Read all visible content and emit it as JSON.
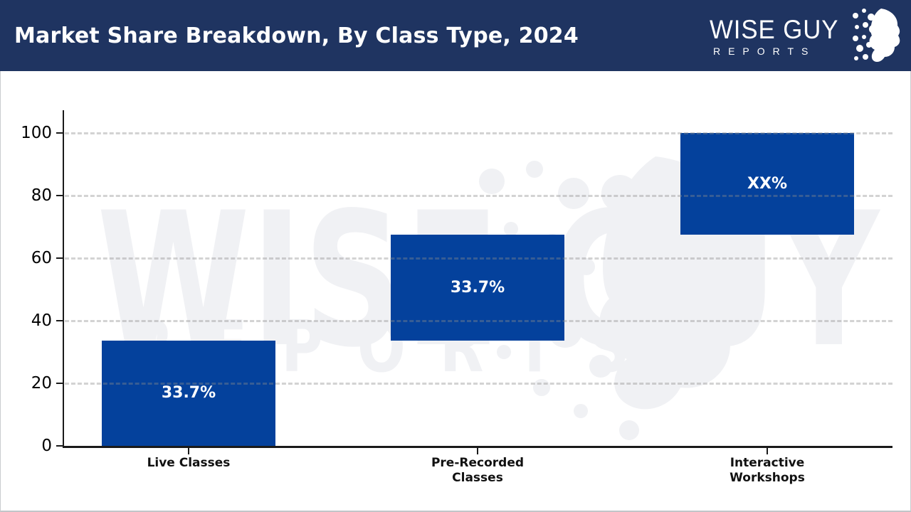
{
  "header": {
    "title": "Market Share Breakdown, By Class Type, 2024",
    "background_color": "#1F3461",
    "logo": {
      "line1": "WISE GUY",
      "line2": "REPORTS"
    }
  },
  "watermark": {
    "line1": "WISE GUY",
    "line2": "REPORTS"
  },
  "chart_data": {
    "type": "bar",
    "subtype": "floating-segment-waterfall",
    "title": "Market Share Breakdown, By Class Type, 2024",
    "categories": [
      "Live Classes",
      "Pre-Recorded Classes",
      "Interactive Workshops"
    ],
    "bars": [
      {
        "category": "Live Classes",
        "from": 0,
        "to": 33.7,
        "label": "33.7%"
      },
      {
        "category": "Pre-Recorded Classes",
        "from": 33.7,
        "to": 67.4,
        "label": "33.7%"
      },
      {
        "category": "Interactive Workshops",
        "from": 67.4,
        "to": 100,
        "label": "XX%"
      }
    ],
    "ylim": [
      0,
      100
    ],
    "yticks": [
      0,
      20,
      40,
      60,
      80,
      100
    ],
    "grid": "horizontal-dashed",
    "bar_color": "#04419C",
    "bar_label_color": "#FFFFFF",
    "axis_color": "#1A1A1A"
  }
}
